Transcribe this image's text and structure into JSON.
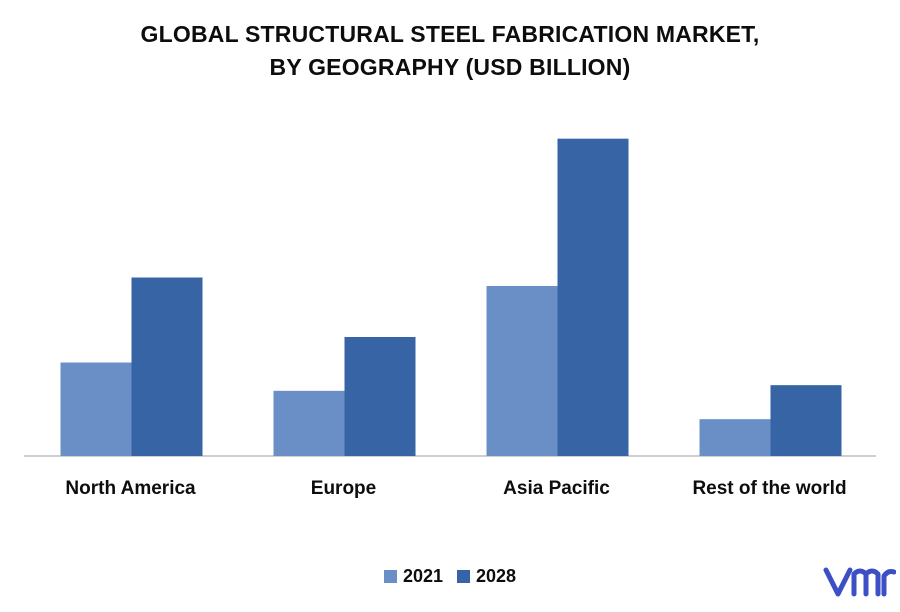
{
  "chart_data": {
    "type": "bar",
    "title": "GLOBAL STRUCTURAL STEEL FABRICATION MARKET,",
    "subtitle": "BY GEOGRAPHY (USD BILLION)",
    "categories": [
      "North America",
      "Europe",
      "Asia Pacific",
      "Rest of the world"
    ],
    "series": [
      {
        "name": "2021",
        "color": "#6a8fc7",
        "values": [
          33,
          23,
          60,
          13
        ]
      },
      {
        "name": "2028",
        "color": "#3664a5",
        "values": [
          63,
          42,
          112,
          25
        ]
      }
    ],
    "ylim": [
      0,
      120
    ],
    "grid": false,
    "legend": "bottom-center"
  },
  "logo": {
    "icon": "vmr-logo-icon",
    "color": "#3d4fc4"
  }
}
